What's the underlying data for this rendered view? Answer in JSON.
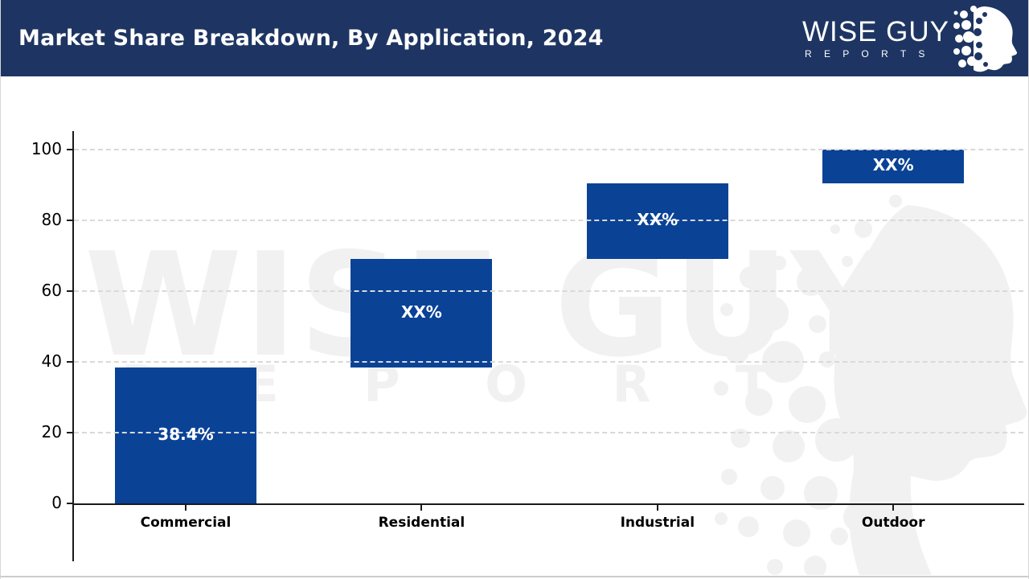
{
  "header": {
    "title": "Market Share Breakdown, By Application, 2024",
    "logo": {
      "name": "WISE GUY",
      "subtitle": "R E P O R T S"
    }
  },
  "watermark": {
    "line1": "WISE GUY",
    "line2": "R E P O R T S"
  },
  "chart_data": {
    "type": "bar",
    "subtype": "waterfall",
    "title": "Market Share Breakdown, By Application, 2024",
    "categories": [
      "Commercial",
      "Residential",
      "Industrial",
      "Outdoor"
    ],
    "segments": [
      {
        "category": "Commercial",
        "start": 0,
        "end": 38.4,
        "label": "38.4%"
      },
      {
        "category": "Residential",
        "start": 38.4,
        "end": 69.1,
        "label": "XX%"
      },
      {
        "category": "Industrial",
        "start": 69.1,
        "end": 90.5,
        "label": "XX%"
      },
      {
        "category": "Outdoor",
        "start": 90.5,
        "end": 100,
        "label": "XX%"
      }
    ],
    "bar_labels": [
      "38.4%",
      "XX%",
      "XX%",
      "XX%"
    ],
    "y_ticks": [
      0,
      20,
      40,
      60,
      80,
      100
    ],
    "ylim": [
      0,
      105
    ],
    "xlabel": "",
    "ylabel": "",
    "grid": "horizontal-dashed",
    "legend": "none"
  },
  "colors": {
    "header_bg": "#1e3563",
    "bar": "#0a4296",
    "bar_label": "#ffffff",
    "watermark": "#f1f1f1",
    "gridline": "#d9d9d9",
    "axis": "#1a1a1a"
  }
}
